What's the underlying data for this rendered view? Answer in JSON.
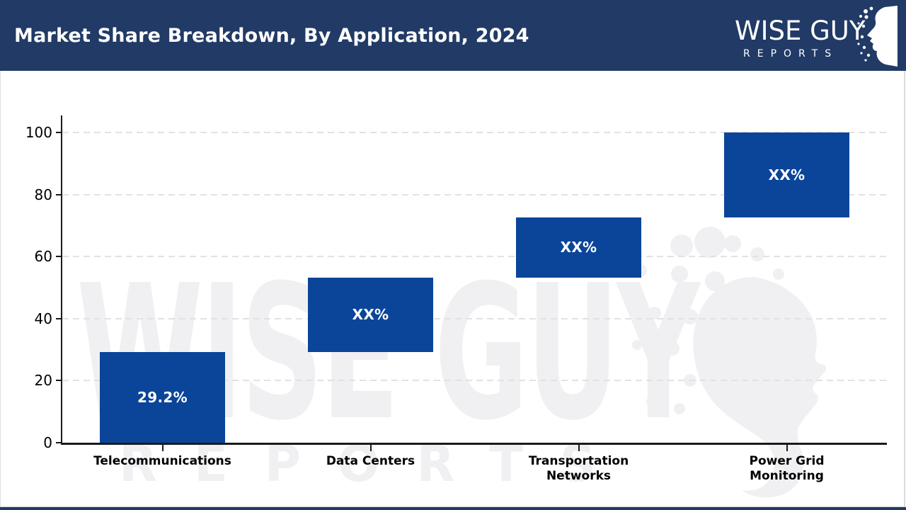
{
  "header": {
    "title": "Market Share Breakdown, By Application, 2024",
    "logo": {
      "line1": "WISE GUY",
      "line2": "REPORTS"
    }
  },
  "watermark": {
    "line1": "WISE GUY",
    "line2": "REPORTS"
  },
  "colors": {
    "header_bg": "#213a66",
    "bar_fill": "#0b4599",
    "bar_label": "#ffffff",
    "axis": "#1a1a1a",
    "gridline": "#e2e2e5",
    "watermark": "#f0f0f3"
  },
  "chart_data": {
    "type": "bar",
    "subtype": "waterfall",
    "title": "Market Share Breakdown, By Application, 2024",
    "xlabel": "",
    "ylabel": "",
    "ylim": [
      0,
      105
    ],
    "yticks": [
      0,
      20,
      40,
      60,
      80,
      100
    ],
    "grid": "horizontal-dashed",
    "categories": [
      "Telecommunications",
      "Data Centers",
      "Transportation\nNetworks",
      "Power Grid\nMonitoring"
    ],
    "segments": [
      {
        "category": "Telecommunications",
        "start": 0,
        "end": 29.2,
        "label": "29.2%"
      },
      {
        "category": "Data Centers",
        "start": 29.2,
        "end": 53.3,
        "label": "XX%"
      },
      {
        "category": "Transportation\nNetworks",
        "start": 53.3,
        "end": 72.5,
        "label": "XX%"
      },
      {
        "category": "Power Grid\nMonitoring",
        "start": 72.5,
        "end": 100,
        "label": "XX%"
      }
    ]
  }
}
